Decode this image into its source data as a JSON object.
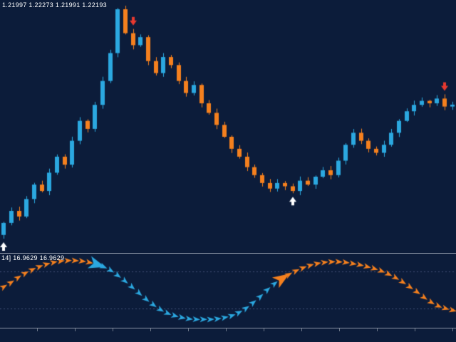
{
  "window": {
    "bg_color": "#0c1c3a",
    "separator_color": "#8a93a5"
  },
  "main_chart": {
    "ohlc_text": "1.21997 1.22273 1.21991 1.22193"
  },
  "indicator": {
    "label": "14] 16.9629 16.9629"
  },
  "chart_data": [
    {
      "type": "candlestick",
      "name": "price-pane",
      "title": "",
      "ohlc_line": "1.21997 1.22273 1.21991 1.22193",
      "up_color": "#2ba8e0",
      "down_color": "#f5801e",
      "pad_top": 8,
      "pad_bottom": 20,
      "closes": [
        1.21218,
        1.21317,
        1.21271,
        1.21415,
        1.21534,
        1.21481,
        1.21632,
        1.21764,
        1.21698,
        1.21895,
        1.22059,
        1.21993,
        1.22191,
        1.22388,
        1.22618,
        1.22979,
        1.22782,
        1.22683,
        1.22749,
        1.22552,
        1.22453,
        1.22585,
        1.22519,
        1.22388,
        1.22289,
        1.22355,
        1.22204,
        1.22125,
        1.22026,
        1.21928,
        1.21829,
        1.21764,
        1.21678,
        1.21612,
        1.21547,
        1.21501,
        1.21547,
        1.2152,
        1.21481,
        1.21566,
        1.21534,
        1.21599,
        1.21652,
        1.21612,
        1.21731,
        1.21862,
        1.21961,
        1.21895,
        1.21829,
        1.21796,
        1.21862,
        1.21961,
        1.22059,
        1.22138,
        1.22191,
        1.22224,
        1.22204,
        1.22243,
        1.22177,
        1.22193
      ],
      "markers": [
        {
          "index": 0,
          "dir": "up",
          "color": "#ffffff"
        },
        {
          "index": 17,
          "dir": "down",
          "color": "#e8392f"
        },
        {
          "index": 38,
          "dir": "up",
          "color": "#ffffff"
        },
        {
          "index": 58,
          "dir": "down",
          "color": "#e8392f"
        }
      ]
    },
    {
      "type": "scatter",
      "name": "oscillator-pane",
      "label": "14] 16.9629 16.9629",
      "current_values": [
        16.9629,
        16.9629
      ],
      "period": 14,
      "ylim": [
        0,
        100
      ],
      "levels": [
        20,
        80
      ],
      "level_color": "#44507a",
      "pad_top": 8,
      "pad_bottom": 10,
      "color_segments": [
        {
          "from": 0,
          "to": 12,
          "color": "#f5801e"
        },
        {
          "from": 13,
          "to": 38,
          "color": "#2ba8e0"
        },
        {
          "from": 39,
          "to": 63,
          "color": "#f5801e"
        }
      ],
      "big_markers": [
        {
          "index": 13,
          "color": "#2ba8e0"
        },
        {
          "index": 39,
          "color": "#f5801e"
        }
      ],
      "values": [
        55,
        62,
        70,
        77,
        83,
        88,
        92,
        95,
        97,
        98,
        98,
        97,
        95,
        92,
        88,
        82,
        74,
        65,
        55,
        45,
        35,
        26,
        18,
        12,
        8,
        5,
        3,
        2,
        2,
        2,
        3,
        5,
        8,
        13,
        20,
        29,
        39,
        50,
        60,
        68,
        75,
        81,
        86,
        90,
        93,
        95,
        96,
        96,
        95,
        93,
        91,
        88,
        85,
        81,
        76,
        70,
        63,
        55,
        47,
        38,
        30,
        24,
        20,
        17
      ]
    }
  ]
}
